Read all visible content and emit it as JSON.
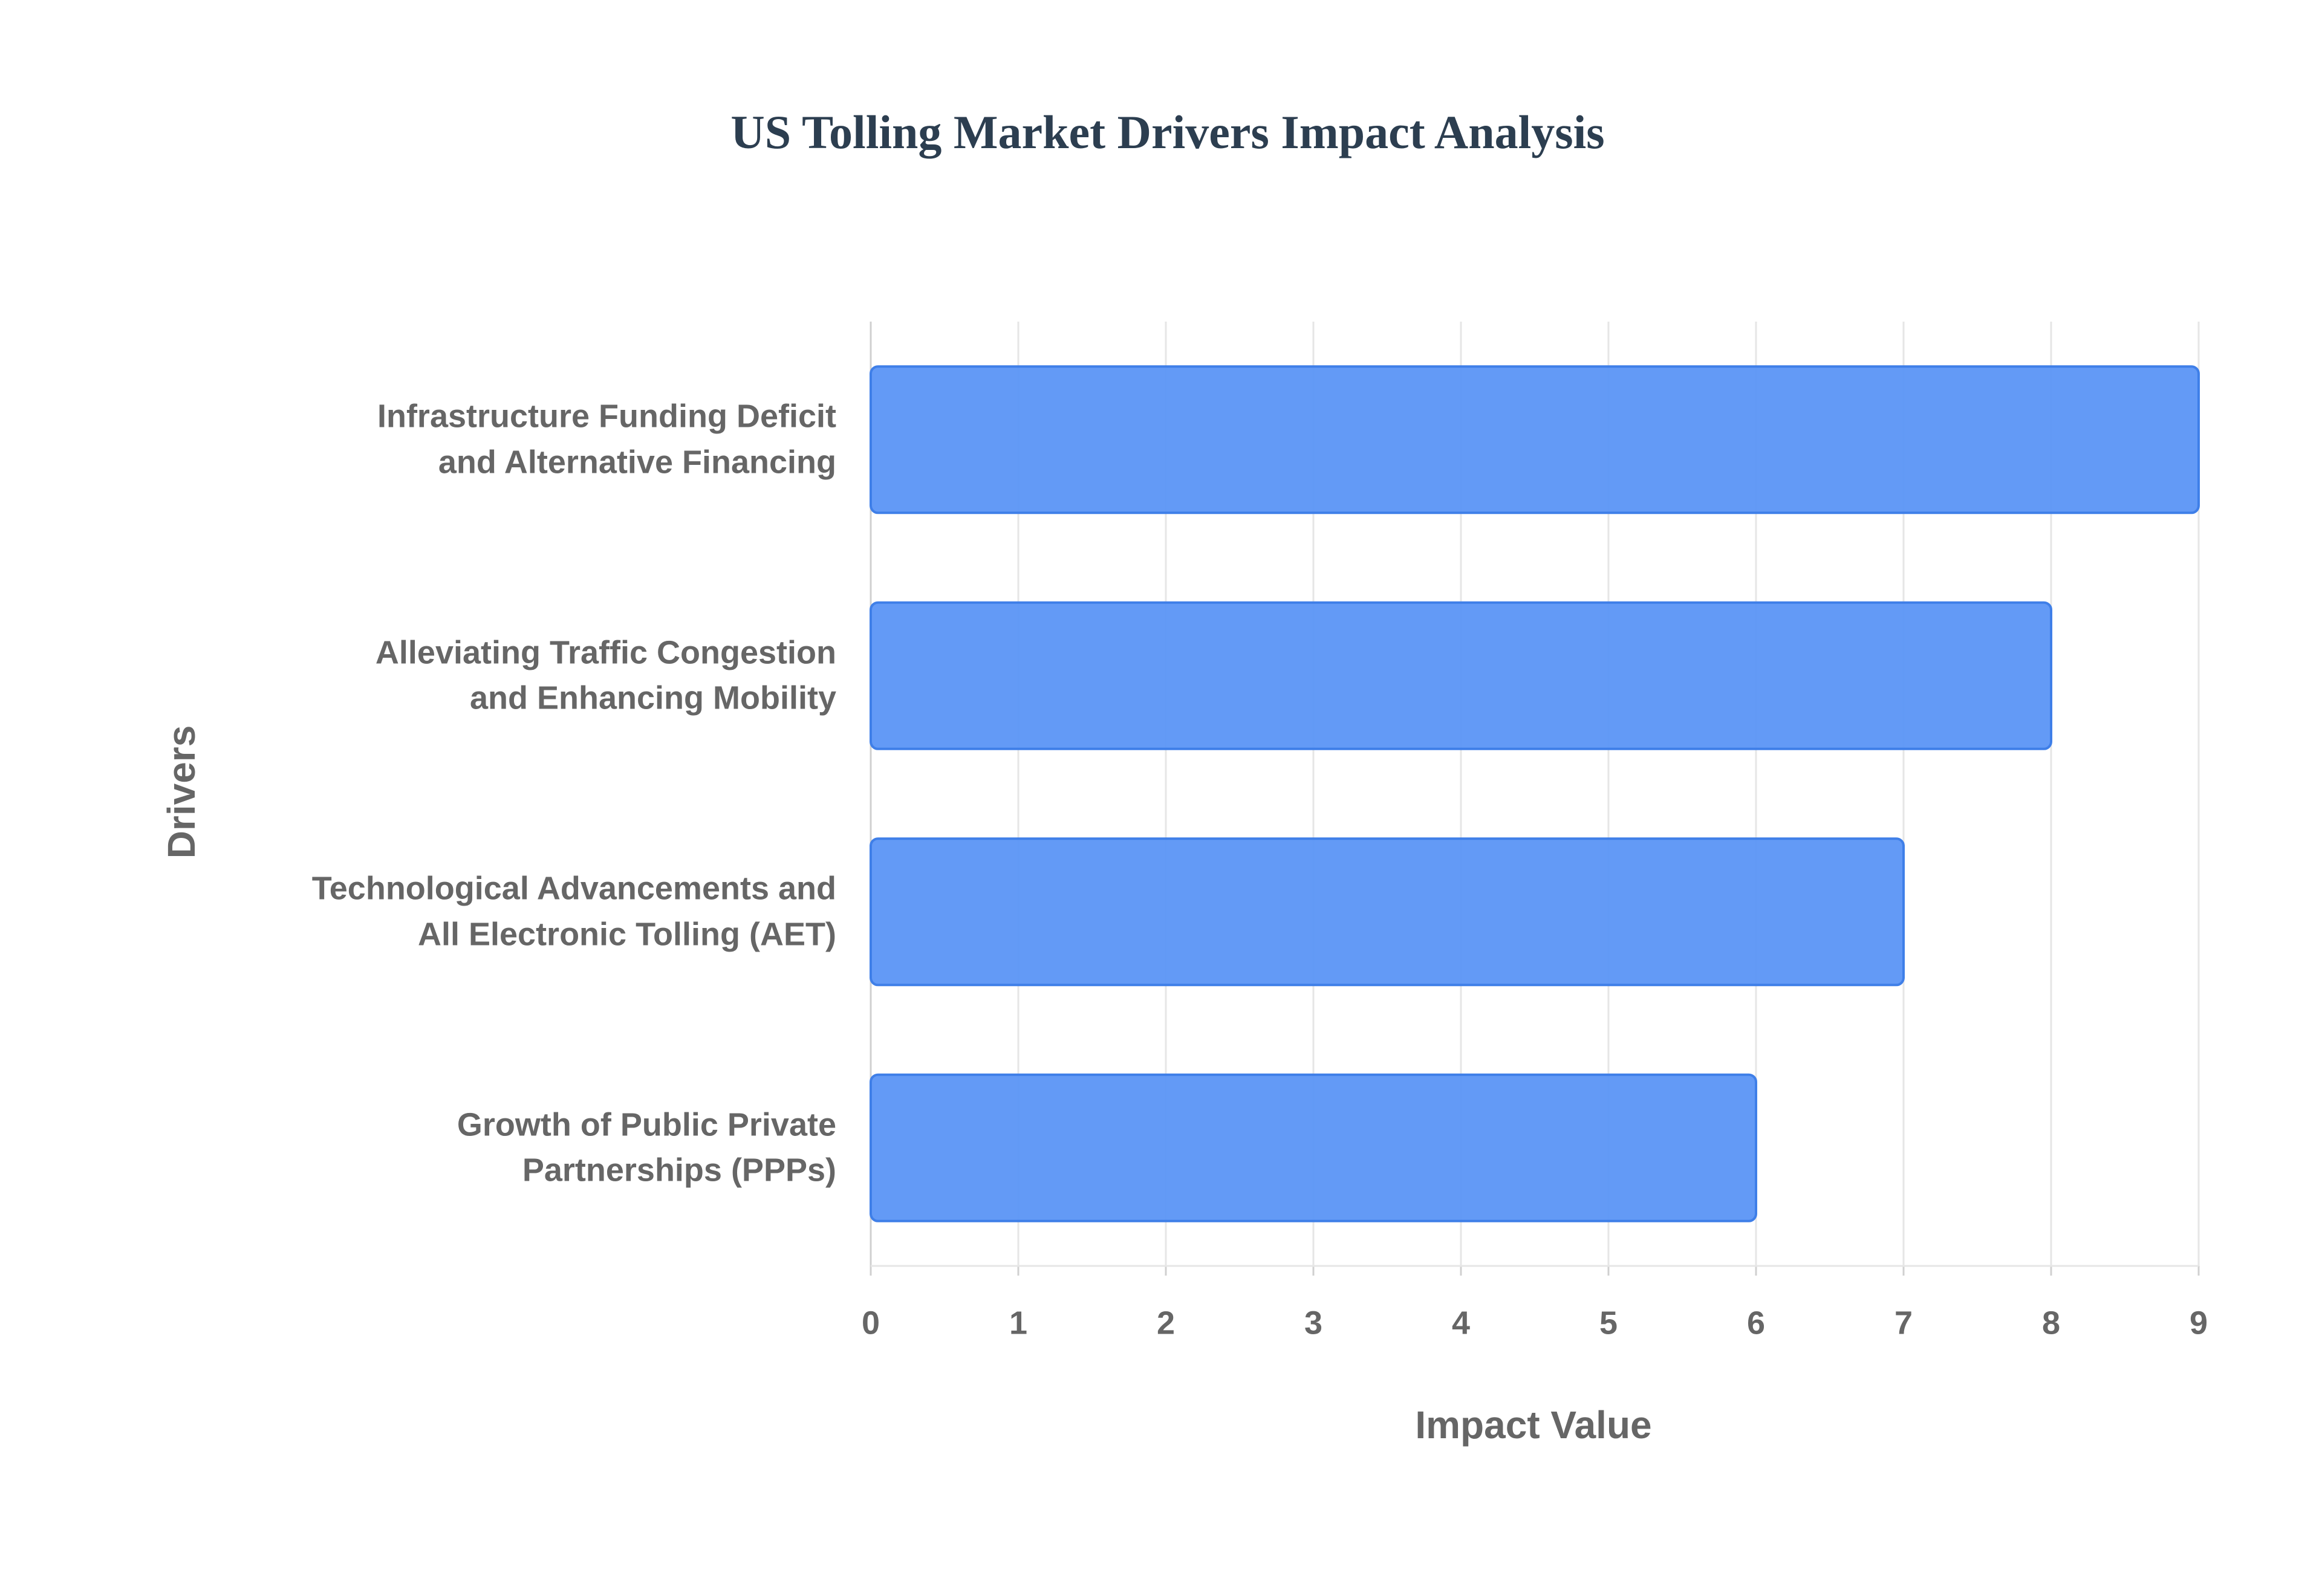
{
  "chart_data": {
    "type": "bar",
    "orientation": "horizontal",
    "title": "US Tolling Market Drivers Impact Analysis",
    "x_label": "Impact Value",
    "y_label": "Drivers",
    "categories": [
      "Infrastructure Funding Deficit\nand Alternative Financing",
      "Alleviating Traffic Congestion\nand Enhancing Mobility",
      "Technological Advancements and\nAll Electronic Tolling (AET)",
      "Growth of Public Private\nPartnerships (PPPs)"
    ],
    "values": [
      9,
      8,
      7,
      6
    ],
    "color": "#5b95f5",
    "xlim": [
      0,
      9
    ],
    "xticks": [
      0,
      1,
      2,
      3,
      4,
      5,
      6,
      7,
      8,
      9
    ],
    "grid": true
  }
}
